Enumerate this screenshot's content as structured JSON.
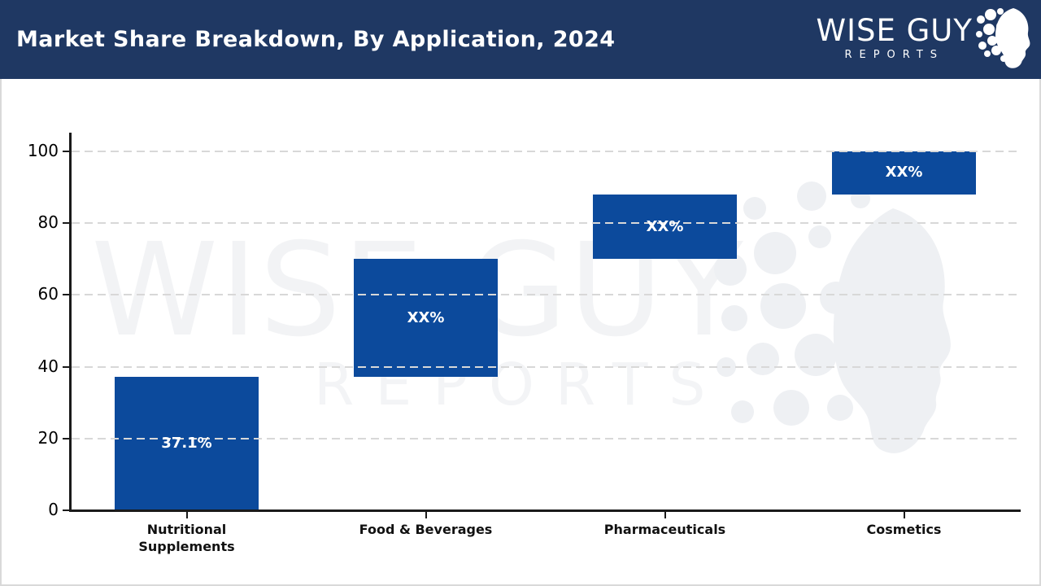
{
  "header": {
    "title": "Market Share Breakdown, By Application, 2024",
    "bg_color": "#1f3863",
    "logo": {
      "wordmark": "WISE GUY",
      "subtext": "REPORTS"
    }
  },
  "watermark": {
    "line1": "WISE GUY",
    "line2": "REPORTS"
  },
  "chart_data": {
    "type": "bar",
    "variant": "waterfall",
    "title": "Market Share Breakdown, By Application, 2024",
    "categories": [
      "Nutritional Supplements",
      "Food & Beverages",
      "Pharmaceuticals",
      "Cosmetics"
    ],
    "segments": [
      {
        "category": "Nutritional Supplements",
        "start": 0,
        "end": 37.1,
        "label": "37.1%"
      },
      {
        "category": "Food & Beverages",
        "start": 37.1,
        "end": 70,
        "label": "XX%"
      },
      {
        "category": "Pharmaceuticals",
        "start": 70,
        "end": 88,
        "label": "XX%"
      },
      {
        "category": "Cosmetics",
        "start": 88,
        "end": 100,
        "label": "XX%"
      }
    ],
    "y_ticks": [
      0,
      20,
      40,
      60,
      80,
      100
    ],
    "ylim": [
      0,
      100
    ],
    "xlabel": "",
    "ylabel": "",
    "bar_color": "#0c4a9c",
    "label_color": "#ffffff",
    "grid": "horizontal-dashed",
    "gridline_color": "#d8d8d8",
    "legend": "none"
  }
}
